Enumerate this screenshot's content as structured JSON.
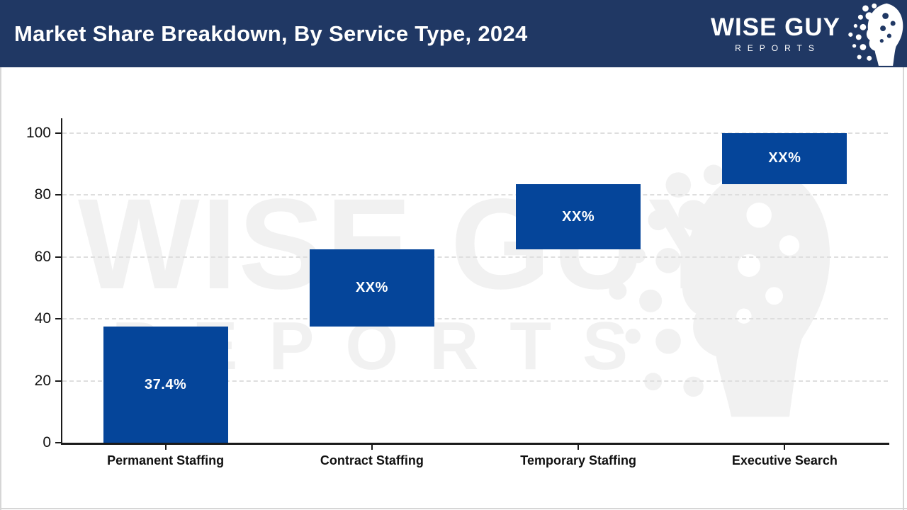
{
  "header": {
    "title": "Market Share Breakdown, By Service Type, 2024",
    "logo": {
      "brand_top": "WISE GUY",
      "brand_bottom": "REPORTS"
    }
  },
  "watermark": {
    "line1": "WISE GUY",
    "line2": "REPORTS"
  },
  "chart_data": {
    "type": "bar",
    "subtype": "waterfall-segments",
    "title": "Market Share Breakdown, By Service Type, 2024",
    "categories": [
      "Permanent Staffing",
      "Contract Staffing",
      "Temporary Staffing",
      "Executive Search"
    ],
    "segments": [
      {
        "category": "Permanent Staffing",
        "start": 0,
        "end": 37.4,
        "size": 37.4,
        "label": "37.4%"
      },
      {
        "category": "Contract Staffing",
        "start": 37.4,
        "end": 62.4,
        "size": 25.0,
        "label": "XX%"
      },
      {
        "category": "Temporary Staffing",
        "start": 62.4,
        "end": 83.4,
        "size": 21.0,
        "label": "XX%"
      },
      {
        "category": "Executive Search",
        "start": 83.4,
        "end": 100.0,
        "size": 16.6,
        "label": "XX%"
      }
    ],
    "xlabel": "",
    "ylabel": "",
    "yticks": [
      0,
      20,
      40,
      60,
      80,
      100
    ],
    "ylim": [
      0,
      104.5
    ],
    "grid": "horizontal-dashed",
    "legend": "none",
    "bar_color": "#05459a",
    "bar_label_color": "#ffffff",
    "axis_color": "#1a1a1a"
  },
  "colors": {
    "header_bg": "#203864",
    "watermark": "#f1f1f1",
    "grid": "#dedede",
    "frame_border": "#d6d6d6"
  }
}
